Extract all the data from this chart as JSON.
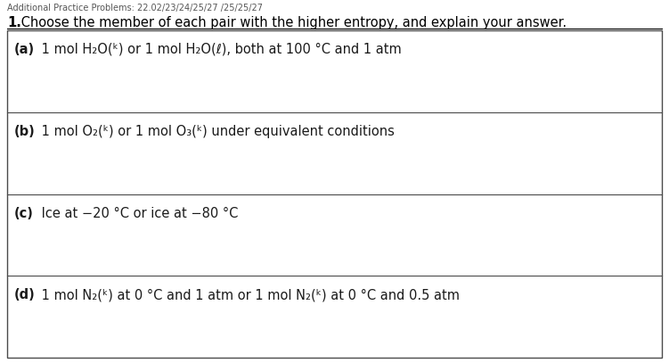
{
  "title_number": "1.",
  "title_text": " Choose the member of each pair with the higher entropy, and explain your answer.",
  "rows": [
    {
      "label": "(a)",
      "line1": " 1 mol H₂O(ᵏ) or 1 mol H₂O(ℓ), both at 100 °C and 1 atm"
    },
    {
      "label": "(b)",
      "line1": " 1 mol O₂(ᵏ) or 1 mol O₃(ᵏ) under equivalent conditions"
    },
    {
      "label": "(c)",
      "line1": " Ice at −20 °C or ice at −80 °C"
    },
    {
      "label": "(d)",
      "line1": " 1 mol N₂(ᵏ) at 0 °C and 1 atm or 1 mol N₂(ᵏ) at 0 °C and 0.5 atm"
    }
  ],
  "background_color": "#ffffff",
  "border_color": "#4a4a4a",
  "text_color": "#1a1a1a",
  "font_size": 10.5,
  "fig_width": 7.51,
  "fig_height": 4.07,
  "dpi": 100
}
